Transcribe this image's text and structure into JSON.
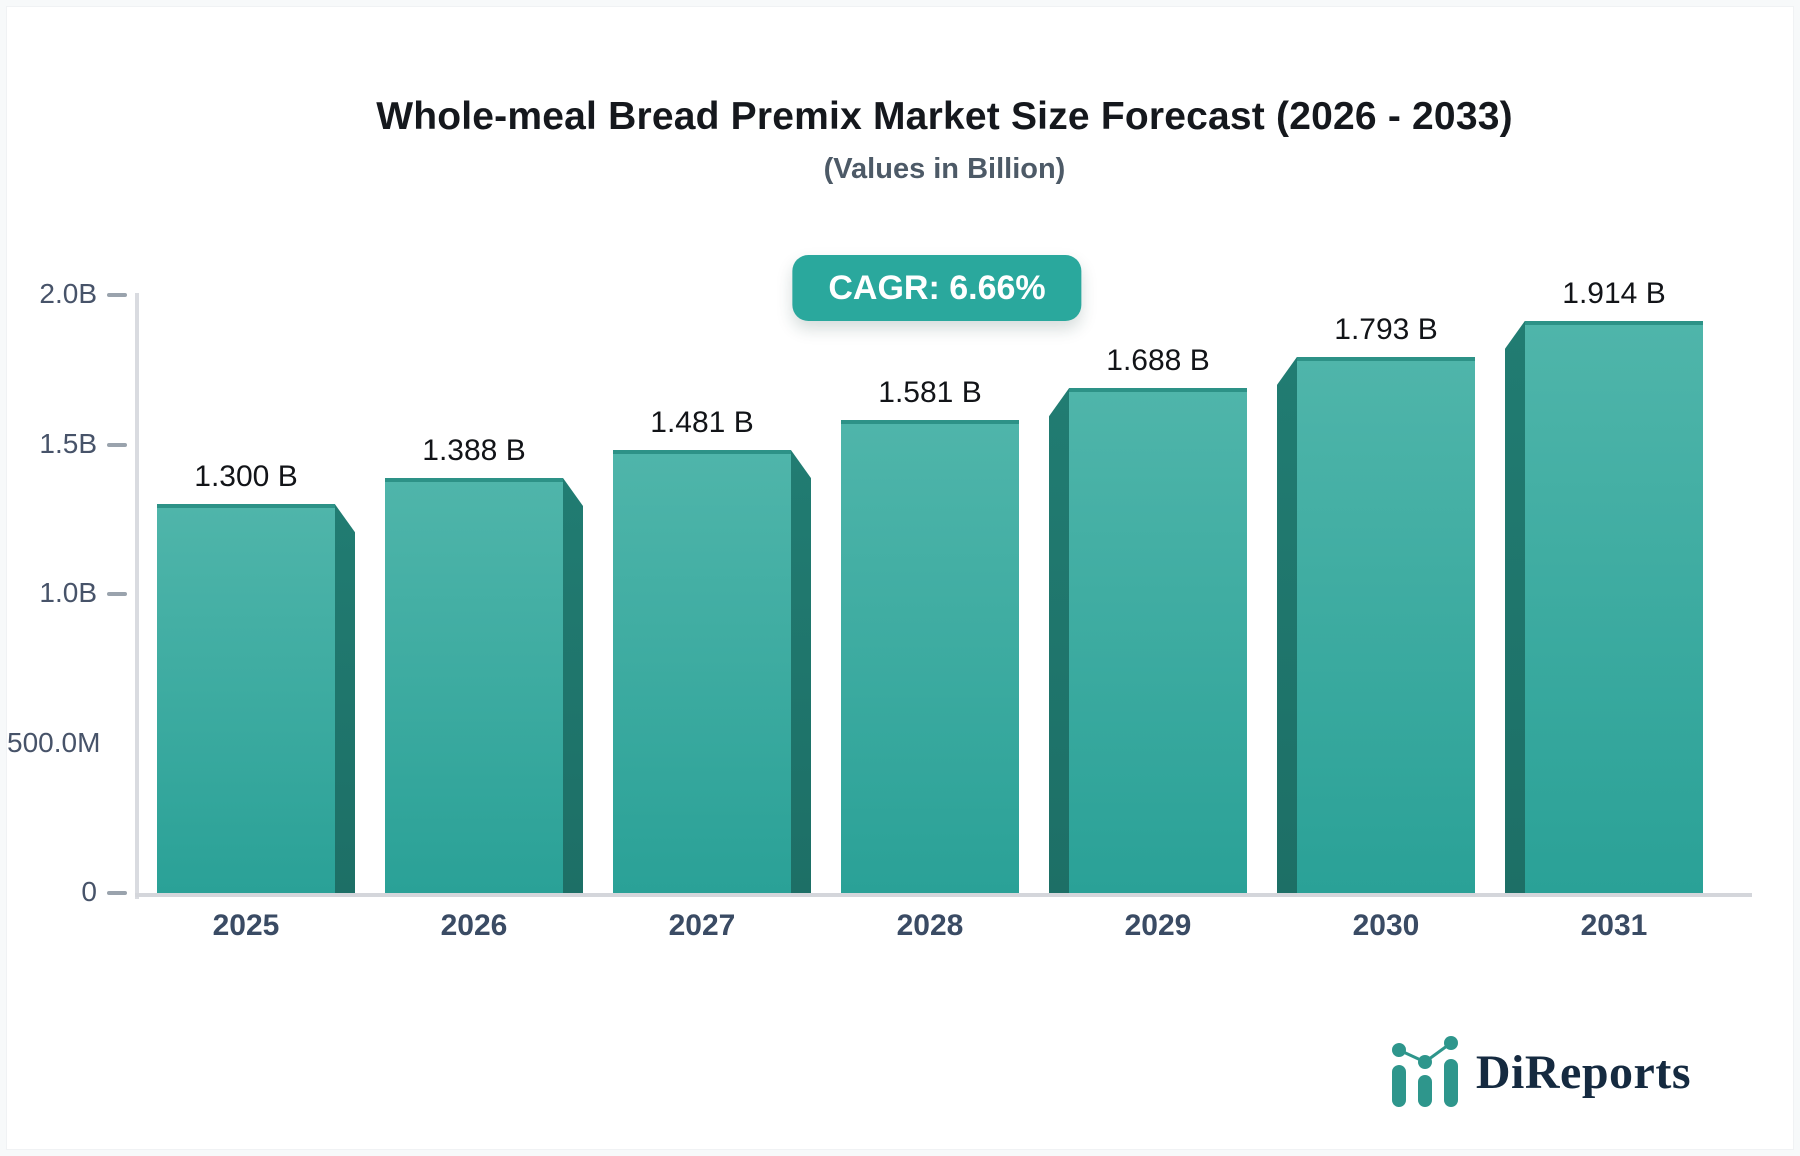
{
  "header": {
    "title": "Whole-meal Bread Premix Market Size Forecast (2026 - 2033)",
    "subtitle": "(Values in Billion)"
  },
  "badge": {
    "label": "CAGR: 6.66%",
    "color": "#2aa89d"
  },
  "chart_data": {
    "type": "bar",
    "title": "Whole-meal Bread Premix Market Size Forecast (2026 - 2033)",
    "subtitle": "(Values in Billion)",
    "unit": "Billion",
    "cagr": "6.66%",
    "categories": [
      "2025",
      "2026",
      "2027",
      "2028",
      "2029",
      "2030",
      "2031"
    ],
    "values": [
      1.3,
      1.388,
      1.481,
      1.581,
      1.688,
      1.793,
      1.914
    ],
    "value_labels": [
      "1.300 B",
      "1.388 B",
      "1.481 B",
      "1.581 B",
      "1.688 B",
      "1.793 B",
      "1.914 B"
    ],
    "ylim": [
      0,
      2.0
    ],
    "yticks": [
      {
        "label": "2.0B",
        "value": 2.0,
        "dash": true
      },
      {
        "label": "1.5B",
        "value": 1.5,
        "dash": true
      },
      {
        "label": "1.0B",
        "value": 1.0,
        "dash": true
      },
      {
        "label": "500.0M",
        "value": 0.5,
        "dash": false
      },
      {
        "label": "0",
        "value": 0.0,
        "dash": true
      }
    ],
    "grid": false,
    "legend": false,
    "bar_color_top": "#4fb5aa",
    "bar_color_bottom": "#2aa197",
    "bar_top_edge_color": "#2d9287",
    "bevel_color_top": "#217c72",
    "bevel_color_bottom": "#1d6f66",
    "bevel_sides": [
      "right",
      "right",
      "right",
      "none",
      "left",
      "left",
      "left"
    ]
  },
  "footer": {
    "logo_text": "DiReports"
  }
}
